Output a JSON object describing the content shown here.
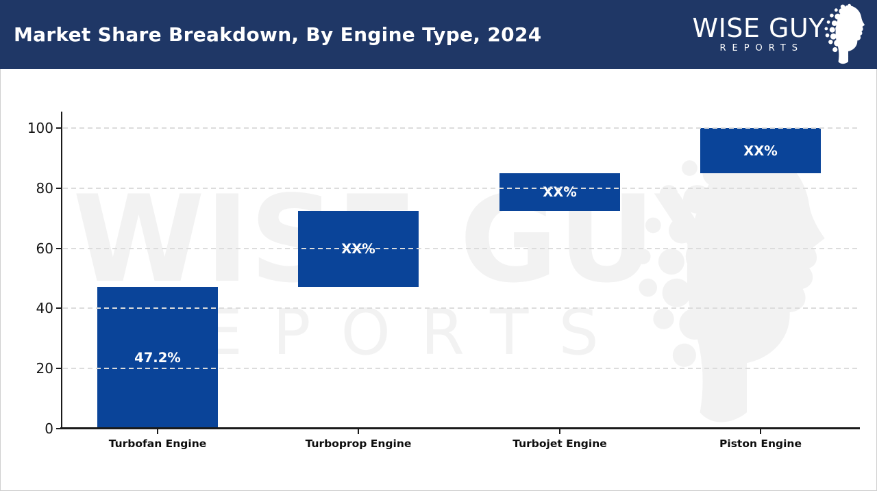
{
  "header": {
    "title": "Market Share Breakdown, By Engine Type, 2024",
    "background": "#1f3766",
    "brand": {
      "line1": "WISE GUY",
      "line2": "REPORTS"
    }
  },
  "watermark": {
    "line1": "WISE GUY",
    "line2": "REPORTS",
    "color": "#f2f2f2"
  },
  "chart_data": {
    "type": "bar",
    "subtype": "waterfall",
    "title": "Market Share Breakdown, By Engine Type, 2024",
    "categories": [
      "Turbofan Engine",
      "Turboprop Engine",
      "Turbojet Engine",
      "Piston Engine"
    ],
    "series": [
      {
        "name": "Market Share",
        "segments": [
          {
            "category": "Turbofan Engine",
            "start": 0,
            "end": 47.2,
            "label": "47.2%"
          },
          {
            "category": "Turboprop Engine",
            "start": 47.2,
            "end": 72.5,
            "label": "XX%"
          },
          {
            "category": "Turbojet Engine",
            "start": 72.5,
            "end": 85.0,
            "label": "XX%"
          },
          {
            "category": "Piston Engine",
            "start": 85.0,
            "end": 100.0,
            "label": "XX%"
          }
        ]
      }
    ],
    "ylim": [
      0,
      100
    ],
    "yticks": [
      0,
      20,
      40,
      60,
      80,
      100
    ],
    "xlabel": "",
    "ylabel": "",
    "grid": "horizontal-dashed-over-bars",
    "legend": "none",
    "bar_color": "#0a4499",
    "bar_label_color": "#ffffff",
    "axis_color": "#1a1a1a",
    "grid_color": "#dcdcdc"
  }
}
